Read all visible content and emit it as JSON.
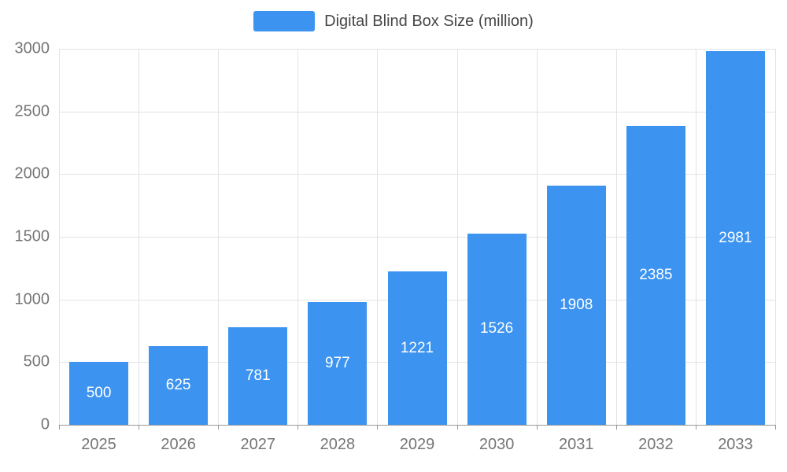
{
  "legend": {
    "label": "Digital Blind Box Size (million)"
  },
  "chart_data": {
    "type": "bar",
    "title": "Digital Blind Box Size (million)",
    "series_name": "Digital Blind Box Size (million)",
    "categories": [
      "2025",
      "2026",
      "2027",
      "2028",
      "2029",
      "2030",
      "2031",
      "2032",
      "2033"
    ],
    "values": [
      500,
      625,
      781,
      977,
      1221,
      1526,
      1908,
      2385,
      2981
    ],
    "xlabel": "",
    "ylabel": "",
    "ylim": [
      0,
      3000
    ],
    "ytick_interval": 500,
    "yticks": [
      0,
      500,
      1000,
      1500,
      2000,
      2500,
      3000
    ],
    "grid": true,
    "legend_position": "top",
    "bar_color": "#3c93f0",
    "bar_label_color": "#ffffff",
    "axis_text_color": "#757575",
    "gridline_color": "#e3e3e3",
    "axis_line_color": "#999999"
  }
}
